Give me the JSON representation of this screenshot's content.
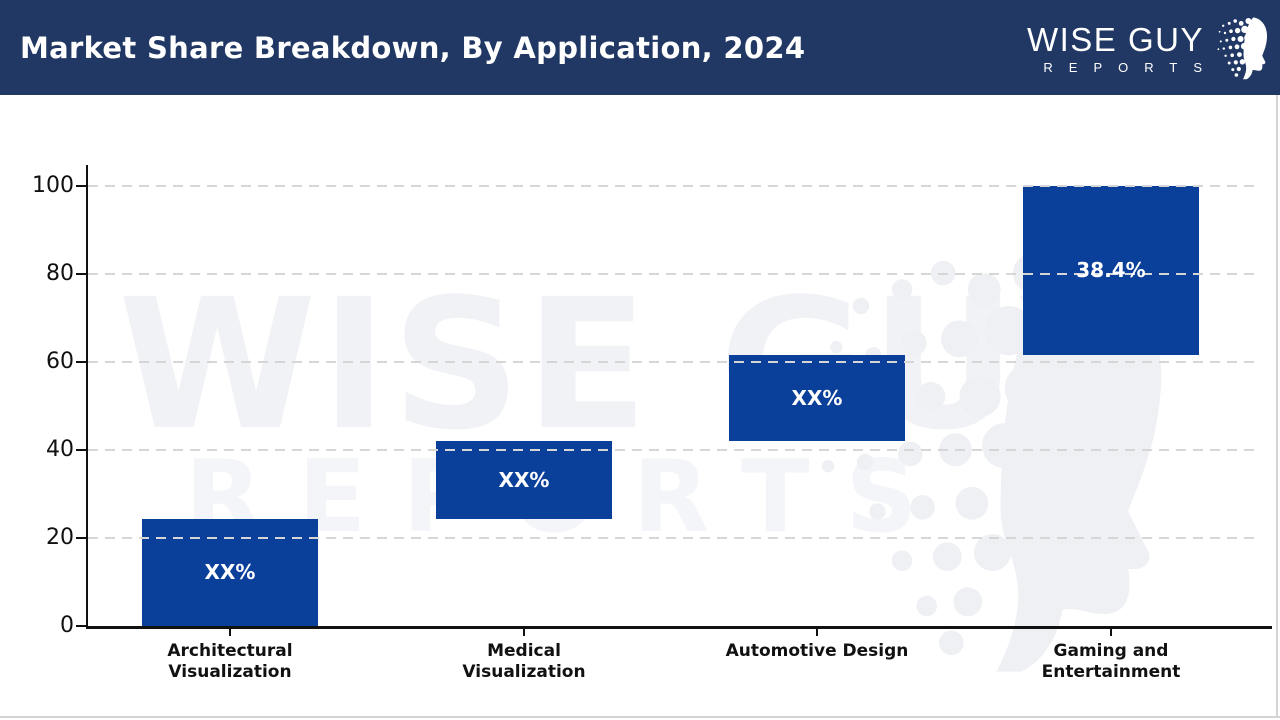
{
  "header": {
    "title": "Market Share Breakdown, By Application, 2024",
    "bg_color": "#213864",
    "logo": {
      "wordmark": "WISE GUY",
      "subtitle": "REPORTS"
    }
  },
  "watermark": {
    "wordmark": "WISE GUY",
    "subtitle": "REPORTS"
  },
  "chart_data": {
    "type": "bar",
    "subtype": "floating-waterfall",
    "title": "Market Share Breakdown, By Application, 2024",
    "unit": "percent market share",
    "categories": [
      "Architectural Visualization",
      "Medical Visualization",
      "Automotive Design",
      "Gaming and Entertainment"
    ],
    "category_lines": [
      [
        "Architectural",
        "Visualization"
      ],
      [
        "Medical",
        "Visualization"
      ],
      [
        "Automotive Design"
      ],
      [
        "Gaming and",
        "Entertainment"
      ]
    ],
    "segments": [
      {
        "category": "Architectural Visualization",
        "start": 0,
        "end": 24.4,
        "label": "XX%"
      },
      {
        "category": "Medical Visualization",
        "start": 24.4,
        "end": 42,
        "label": "XX%"
      },
      {
        "category": "Automotive Design",
        "start": 42,
        "end": 61.6,
        "label": "XX%"
      },
      {
        "category": "Gaming and Entertainment",
        "start": 61.6,
        "end": 100,
        "label": "38.4%"
      }
    ],
    "yticks": [
      0,
      20,
      40,
      60,
      80,
      100
    ],
    "ylim": [
      0,
      100
    ],
    "grid": "horizontal-dashed",
    "legend": "none",
    "bar_color": "#0a3f9a",
    "bar_label_color": "#ffffff",
    "axis_color": "#111111",
    "gridline_color": "#d6d6d6"
  }
}
